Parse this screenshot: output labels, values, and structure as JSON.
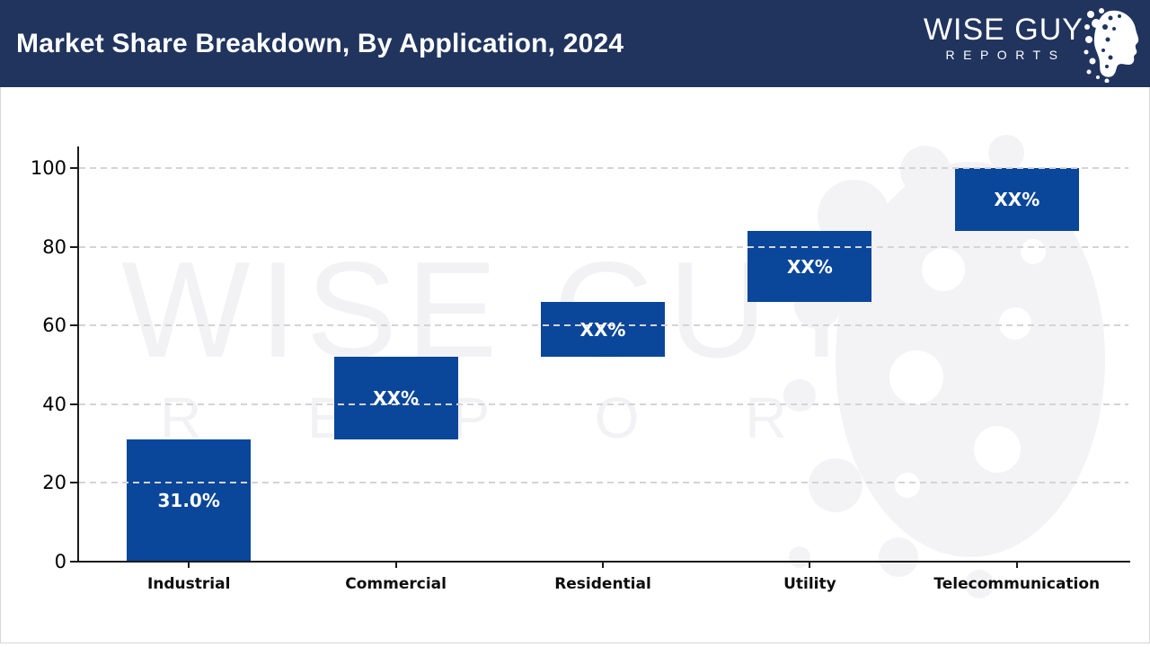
{
  "header": {
    "title": "Market Share Breakdown, By Application, 2024",
    "logo": {
      "line1": "WISE GUY",
      "line2": "REPORTS"
    },
    "bg_color": "#20345e"
  },
  "watermark": {
    "line1": "WISE GUY",
    "line2": "R E P O R T S"
  },
  "chart_data": {
    "type": "bar",
    "subtype": "waterfall",
    "title": "Market Share Breakdown, By Application, 2024",
    "categories": [
      "Industrial",
      "Commercial",
      "Residential",
      "Utility",
      "Telecommunication"
    ],
    "segments": [
      {
        "category": "Industrial",
        "start": 0,
        "end": 31,
        "value": 31,
        "label": "31.0%"
      },
      {
        "category": "Commercial",
        "start": 31,
        "end": 52,
        "value": 21,
        "label": "XX%"
      },
      {
        "category": "Residential",
        "start": 52,
        "end": 66,
        "value": 14,
        "label": "XX%"
      },
      {
        "category": "Utility",
        "start": 66,
        "end": 84,
        "value": 18,
        "label": "XX%"
      },
      {
        "category": "Telecommunication",
        "start": 84,
        "end": 100,
        "value": 16,
        "label": "XX%"
      }
    ],
    "values": [
      31,
      21,
      14,
      18,
      16
    ],
    "y_ticks": [
      0,
      20,
      40,
      60,
      80,
      100
    ],
    "ylim": [
      0,
      105
    ],
    "xlabel": "",
    "ylabel": "",
    "grid": "horizontal dashed",
    "legend": "none",
    "bar_color": "#0a4699",
    "bar_label_color": "#ffffff",
    "units": "percent"
  }
}
